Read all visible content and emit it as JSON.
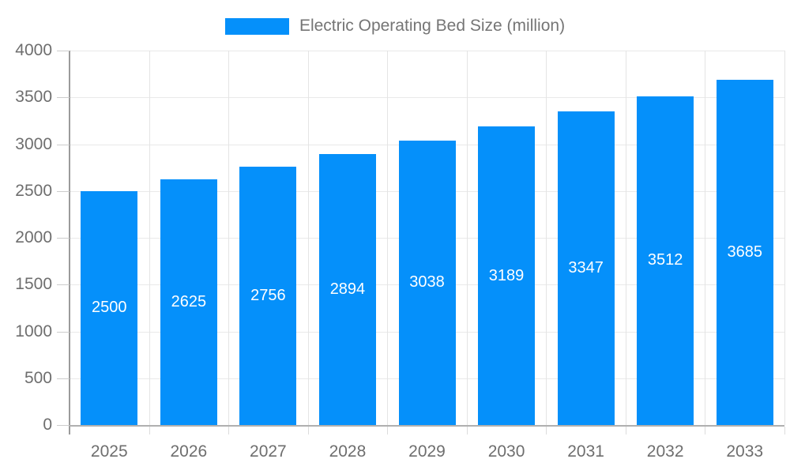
{
  "legend": {
    "label": "Electric Operating Bed Size (million)",
    "swatch_color": "#0590fa"
  },
  "chart_data": {
    "type": "bar",
    "title": "",
    "xlabel": "",
    "ylabel": "",
    "categories": [
      "2025",
      "2026",
      "2027",
      "2028",
      "2029",
      "2030",
      "2031",
      "2032",
      "2033"
    ],
    "series": [
      {
        "name": "Electric Operating Bed Size (million)",
        "values": [
          2500,
          2625,
          2756,
          2894,
          3038,
          3189,
          3347,
          3512,
          3685
        ]
      }
    ],
    "bar_labels": [
      "2500",
      "2625",
      "2756",
      "2894",
      "3038",
      "3189",
      "3347",
      "3512",
      "3685"
    ],
    "ylim": [
      0,
      4000
    ],
    "yticks": [
      0,
      500,
      1000,
      1500,
      2000,
      2500,
      3000,
      3500,
      4000
    ],
    "grid": true,
    "legend_position": "top",
    "colors": {
      "bar": "#0590fa",
      "bar_label": "#ffffff",
      "axis_text": "#6e6e6e",
      "legend_text": "#757575",
      "grid_h": "#e9e9e9",
      "grid_v": "#e4e4e4",
      "axis_line_y": "#9b9b9b",
      "axis_line_x": "#b0b0b0"
    }
  }
}
